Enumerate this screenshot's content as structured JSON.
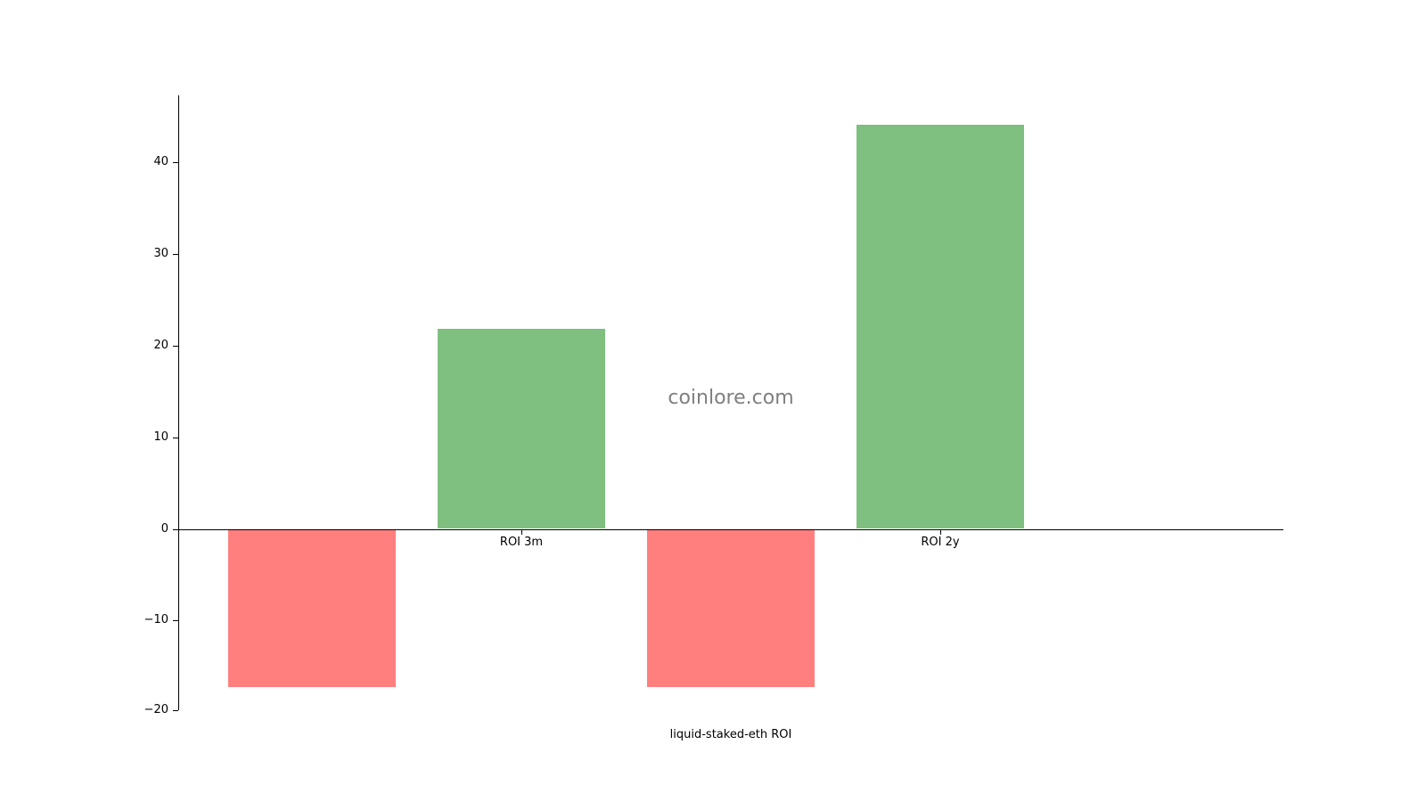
{
  "chart_data": {
    "type": "bar",
    "title": "",
    "xlabel": "liquid-staked-eth ROI",
    "ylabel": "",
    "watermark": "coinlore.com",
    "categories": [
      "",
      "ROI 3m",
      "",
      "ROI 2y"
    ],
    "values": [
      -17.3,
      21.8,
      -17.3,
      44.1
    ],
    "bar_colors": [
      "#ff7f7f",
      "#7fbf7f",
      "#ff7f7f",
      "#7fbf7f"
    ],
    "positive_color": "#7fbf7f",
    "negative_color": "#ff7f7f",
    "yticks": [
      {
        "value": -20,
        "label": "−20"
      },
      {
        "value": -10,
        "label": "−10"
      },
      {
        "value": 0,
        "label": "0"
      },
      {
        "value": 10,
        "label": "10"
      },
      {
        "value": 20,
        "label": "20"
      },
      {
        "value": 30,
        "label": "30"
      },
      {
        "value": 40,
        "label": "40"
      }
    ],
    "ylim": [
      -19.8,
      47.3
    ],
    "grid": false,
    "legend_position": "none",
    "axis_color": "#000000",
    "watermark_color": "#7f7f7f",
    "text_color": "#000000",
    "background_color": "#ffffff"
  }
}
